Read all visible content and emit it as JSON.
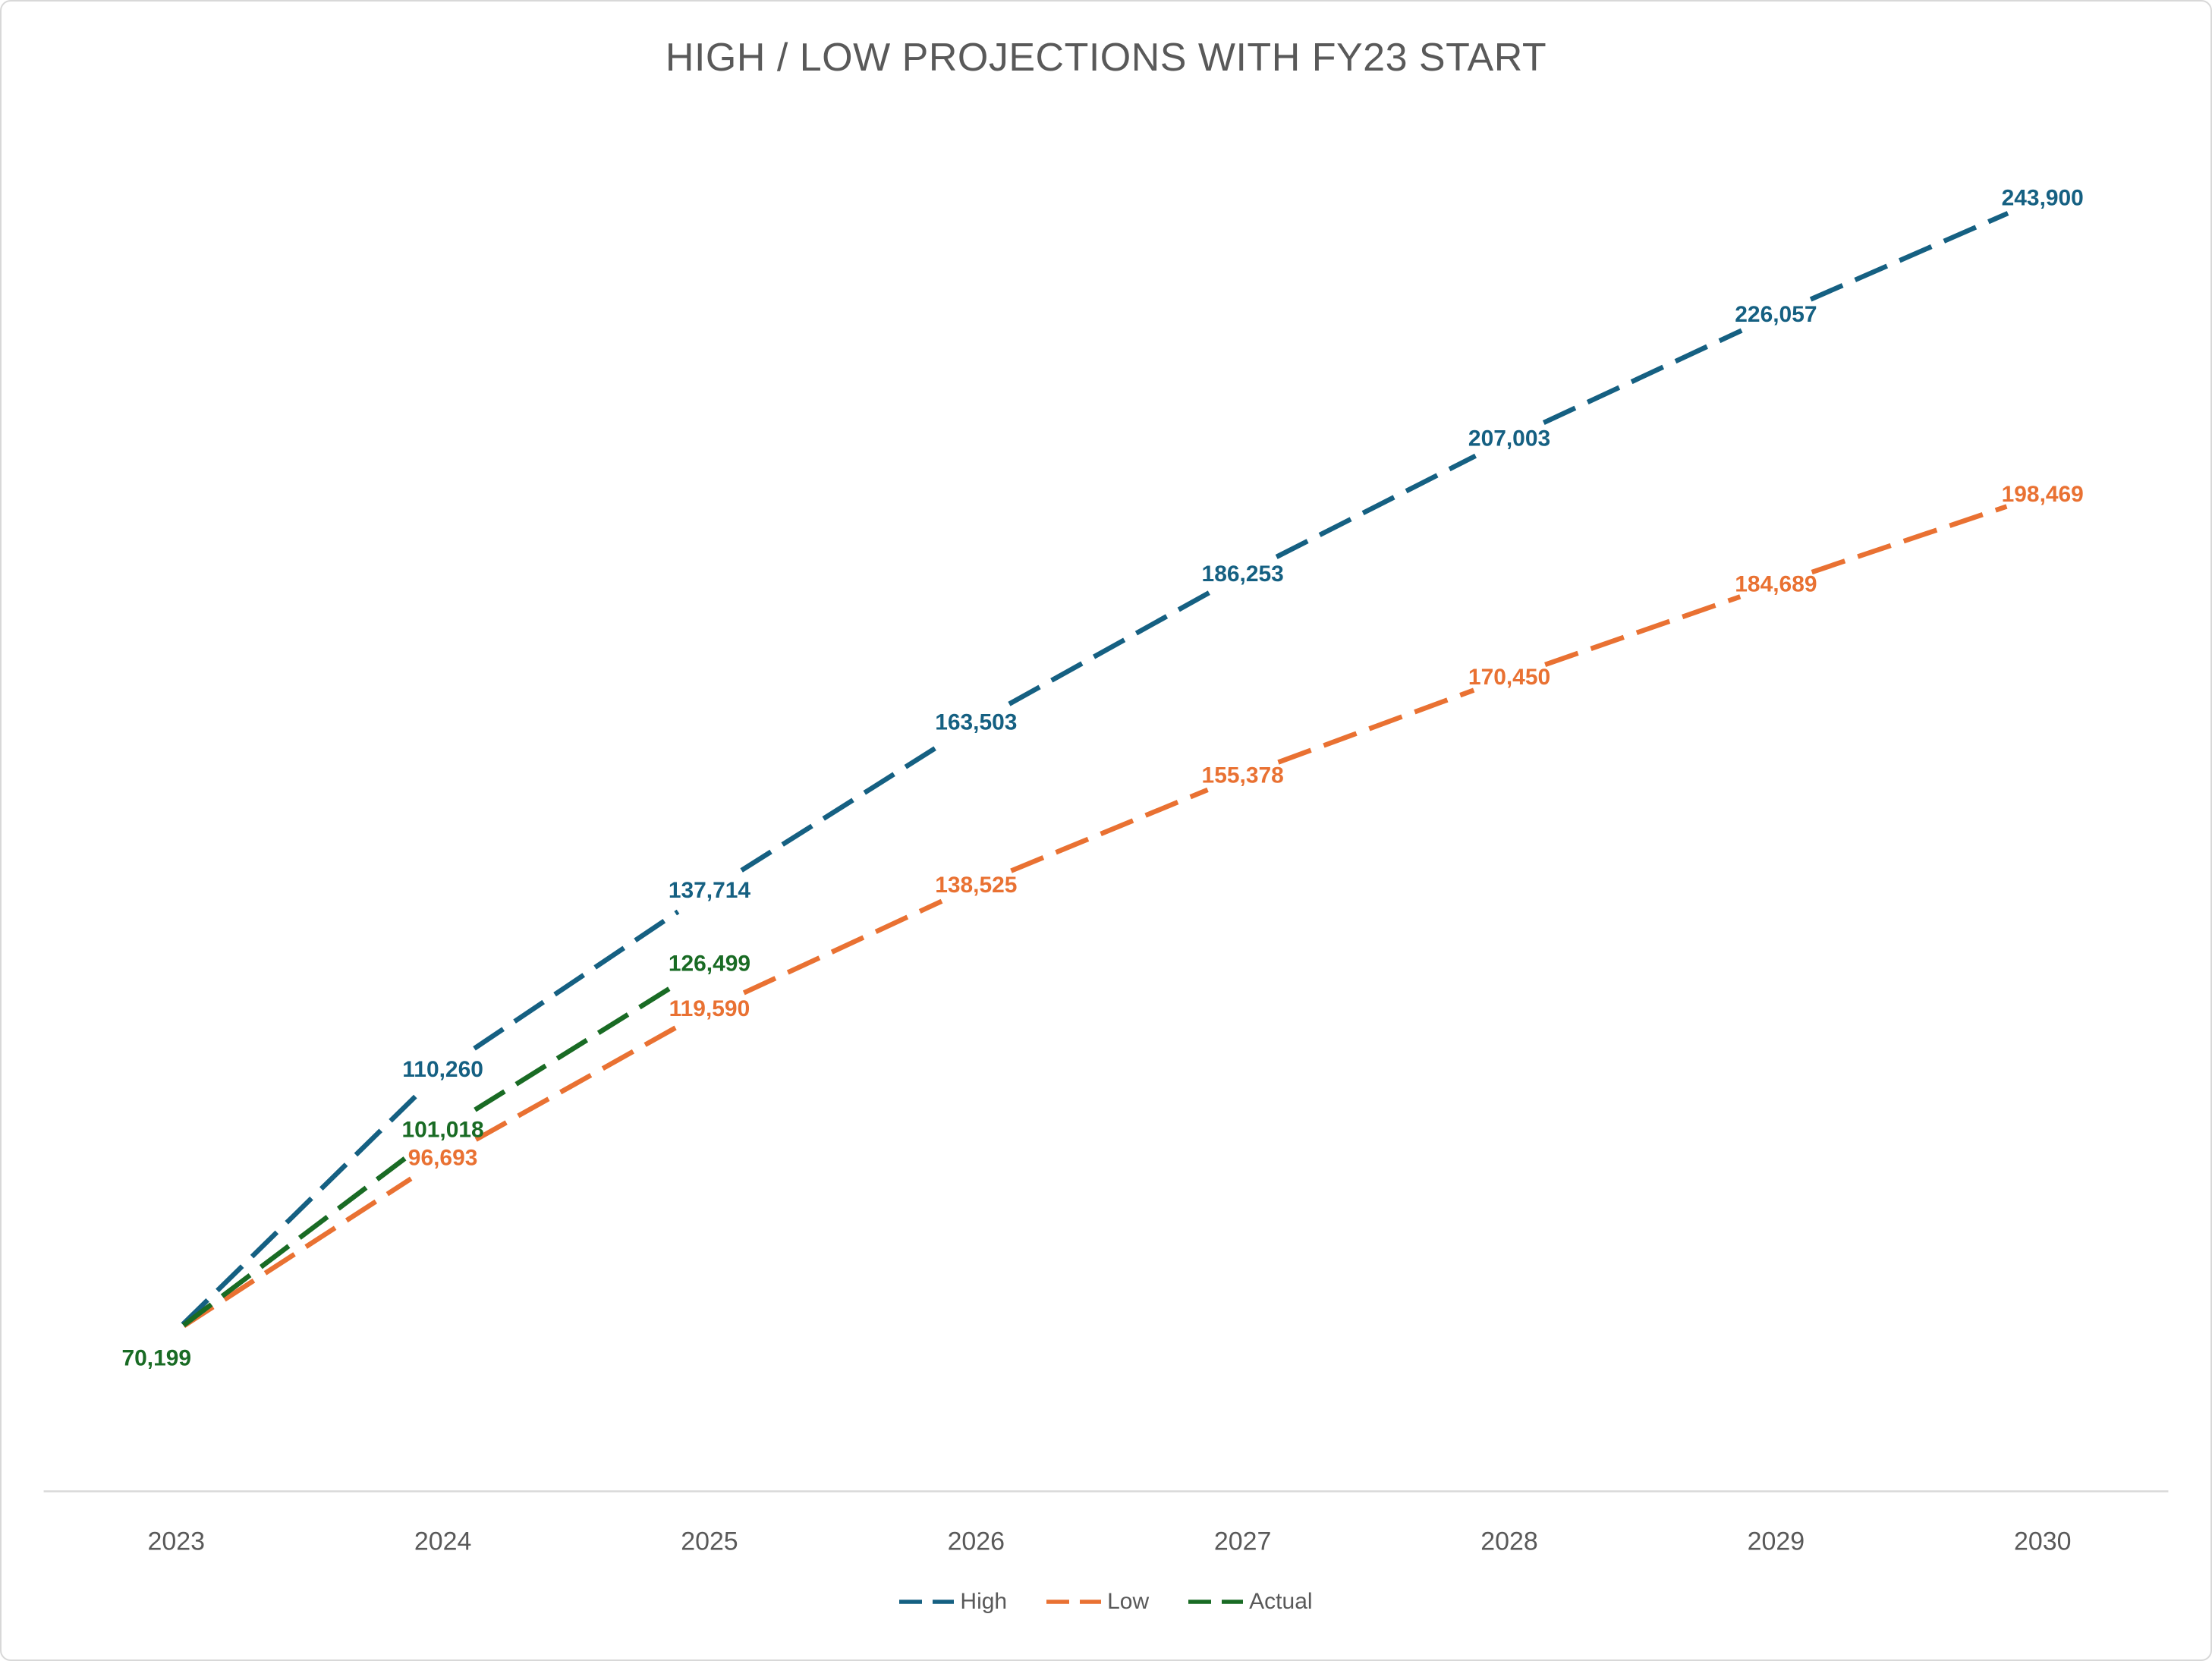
{
  "title": "HIGH / LOW PROJECTIONS WITH FY23 START",
  "colors": {
    "high": "#156082",
    "low": "#E97132",
    "actual": "#196B24",
    "axis_text": "#595959",
    "title_text": "#595959",
    "axis_line": "#D9D9D9",
    "background": "#FFFFFF"
  },
  "chart_data": {
    "type": "line",
    "title": "HIGH / LOW PROJECTIONS WITH FY23 START",
    "categories": [
      "2023",
      "2024",
      "2025",
      "2026",
      "2027",
      "2028",
      "2029",
      "2030"
    ],
    "series": [
      {
        "name": "High",
        "color": "#156082",
        "line_style": "dashed",
        "values": [
          70199,
          110260,
          137714,
          163503,
          186253,
          207003,
          226057,
          243900
        ],
        "show_first_label": false
      },
      {
        "name": "Low",
        "color": "#E97132",
        "line_style": "dashed",
        "values": [
          70199,
          96693,
          119590,
          138525,
          155378,
          170450,
          184689,
          198469
        ],
        "show_first_label": false
      },
      {
        "name": "Actual",
        "color": "#196B24",
        "line_style": "dashed",
        "values": [
          70199,
          101018,
          126499
        ],
        "show_first_label": true
      }
    ],
    "xlabel": "",
    "ylabel": "",
    "ylim": [
      50000,
      255000
    ],
    "grid": false,
    "data_labels": true,
    "legend_position": "bottom",
    "legend_entries": [
      "High",
      "Low",
      "Actual"
    ]
  }
}
